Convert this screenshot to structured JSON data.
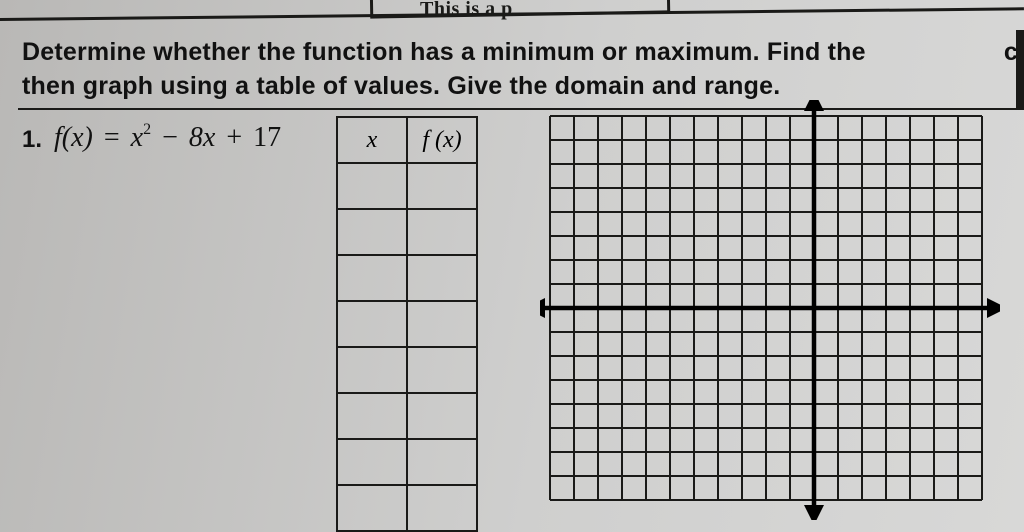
{
  "fragment_text": "This is a p",
  "instruction_line1": "Determine whether the function has a minimum or maximum. Find the",
  "instruction_line2": "then graph using a table of values. Give the domain and range.",
  "problem": {
    "number": "1.",
    "func_lhs": "f(x)",
    "term_a": "x",
    "exp_a": "2",
    "op1": "−",
    "coef_b": "8",
    "var_b": "x",
    "op2": "+",
    "const_c": "17"
  },
  "table": {
    "header_x": "x",
    "header_fx": "f (x)",
    "blank_rows": 8
  },
  "grid": {
    "cols": 18,
    "rows": 16,
    "cell": 24,
    "axis_x_col": 11,
    "axis_y_row": 8,
    "stroke_minor": "#1a1a18",
    "stroke_axis": "#000000"
  },
  "colors": {
    "paper_dark": "#b9b8b6",
    "paper_light": "#d8d8d7",
    "ink": "#1a1a18"
  }
}
